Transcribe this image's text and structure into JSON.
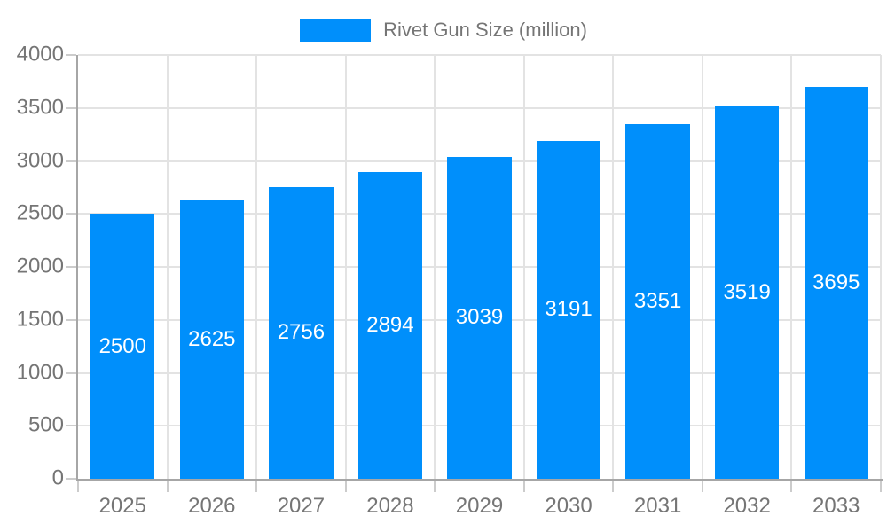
{
  "chart_data": {
    "type": "bar",
    "legend": "Rivet Gun Size (million)",
    "legend_position": "top",
    "categories": [
      "2025",
      "2026",
      "2027",
      "2028",
      "2029",
      "2030",
      "2031",
      "2032",
      "2033"
    ],
    "values": [
      2500,
      2625,
      2756,
      2894,
      3039,
      3191,
      3351,
      3519,
      3695
    ],
    "xlabel": "",
    "ylabel": "",
    "ylim": [
      0,
      4000
    ],
    "y_ticks": [
      0,
      500,
      1000,
      1500,
      2000,
      2500,
      3000,
      3500,
      4000
    ],
    "grid": true,
    "bar_width_fraction": 0.72,
    "data_labels_inside": true
  },
  "colors": {
    "bar": "#008FFB",
    "bar_value_label": "#ffffff",
    "axis_label": "#757575",
    "grid": "#e3e3e3",
    "axis_line": "#a6a6a6",
    "tick": "#cccccc"
  }
}
